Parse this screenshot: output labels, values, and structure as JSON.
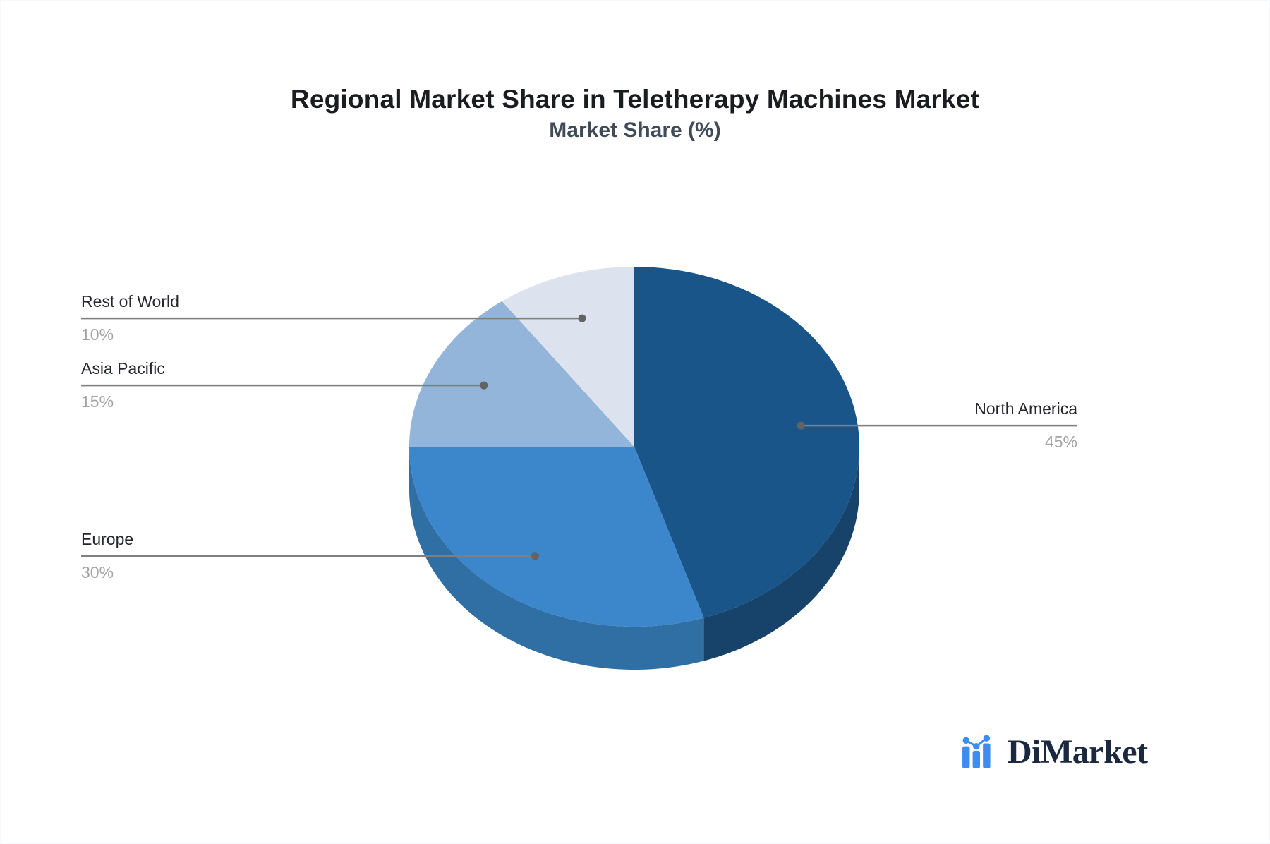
{
  "header": {
    "title": "Regional Market Share in Teletherapy Machines Market",
    "subtitle": "Market Share (%)"
  },
  "chart_data": {
    "type": "pie",
    "title": "Regional Market Share in Teletherapy Machines Market",
    "subtitle": "Market Share (%)",
    "unit": "%",
    "style": "3d",
    "start_angle": "top",
    "direction": "clockwise",
    "legend_position": "none",
    "series": [
      {
        "name": "North America",
        "value": 45,
        "label": "45%",
        "color_top": "#1a5589",
        "color_side": "#17436b"
      },
      {
        "name": "Europe",
        "value": 30,
        "label": "30%",
        "color_top": "#3c87cb",
        "color_side": "#2f6fa3"
      },
      {
        "name": "Asia Pacific",
        "value": 15,
        "label": "15%",
        "color_top": "#93b5da",
        "color_side": "#7a9fc7"
      },
      {
        "name": "Rest of World",
        "value": 10,
        "label": "10%",
        "color_top": "#dce3ee",
        "color_side": "#b9c6da"
      }
    ],
    "leader_line_color": "#7f7f7f",
    "leader_dot_color": "#636363",
    "label_name_color": "#25272c",
    "label_value_color": "#a2a2a2"
  },
  "branding": {
    "name": "DiMarket",
    "icon": "bar-chart-trend-icon",
    "icon_color": "#3e8bf2",
    "text_color": "#1b2940"
  }
}
